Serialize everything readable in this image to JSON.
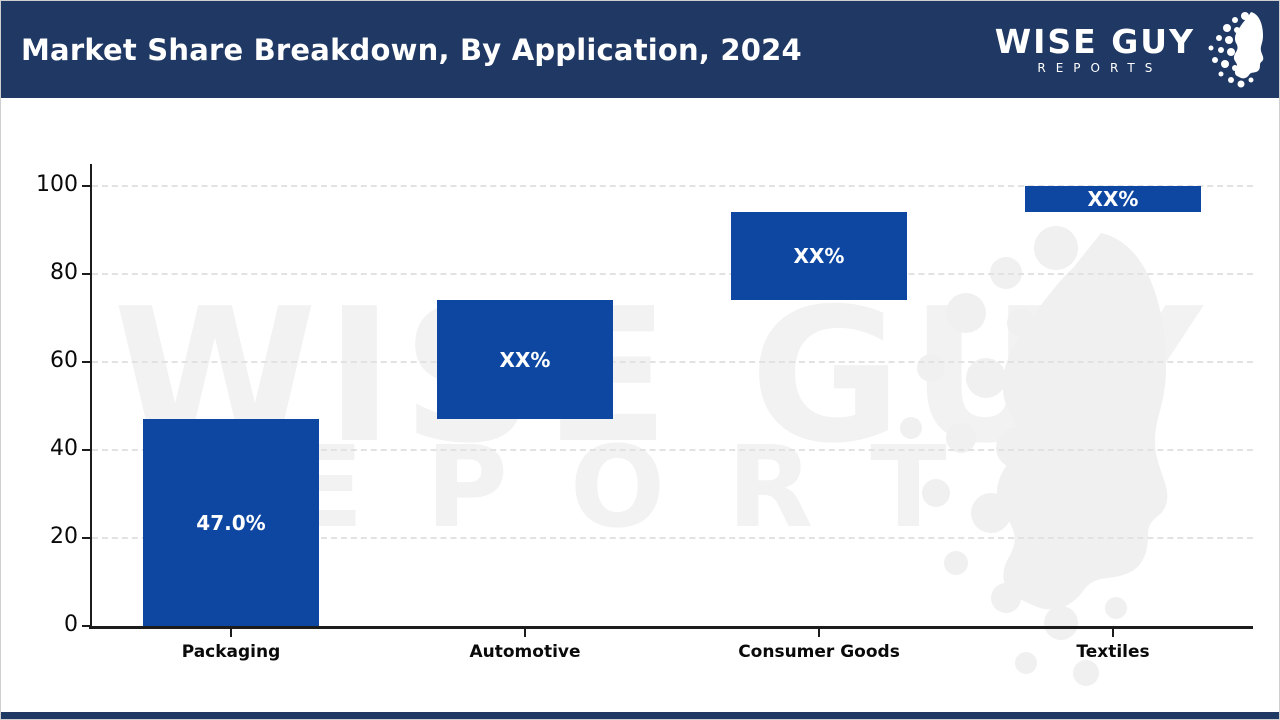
{
  "header": {
    "title": "Market Share Breakdown, By Application, 2024",
    "logo": {
      "line1": "WISE GUY",
      "line2": "REPORTS"
    }
  },
  "watermark": {
    "line1": "WISE GUY",
    "line2": "REPORTS"
  },
  "chart_data": {
    "type": "bar",
    "subtype": "waterfall",
    "title": "Market Share Breakdown, By Application, 2024",
    "xlabel": "",
    "ylabel": "",
    "categories": [
      "Packaging",
      "Automotive",
      "Consumer Goods",
      "Textiles"
    ],
    "values": [
      47,
      27,
      20,
      6
    ],
    "segments": [
      {
        "category": "Packaging",
        "start": 0,
        "end": 47,
        "label": "47.0%"
      },
      {
        "category": "Automotive",
        "start": 47,
        "end": 74,
        "label": "XX%"
      },
      {
        "category": "Consumer Goods",
        "start": 74,
        "end": 94,
        "label": "XX%"
      },
      {
        "category": "Textiles",
        "start": 94,
        "end": 100,
        "label": "XX%"
      }
    ],
    "yticks": [
      0,
      20,
      40,
      60,
      80,
      100
    ],
    "ylim": [
      0,
      105
    ],
    "grid": "horizontal-dashed",
    "legend": "none"
  },
  "colors": {
    "header_bg": "#1f3864",
    "footer_bg": "#1f3864",
    "bar": "#0d47a1",
    "bar_label": "#ffffff",
    "grid": "#e2e2e2",
    "axis": "#1c1c1c",
    "watermark": "#f2f2f2"
  }
}
